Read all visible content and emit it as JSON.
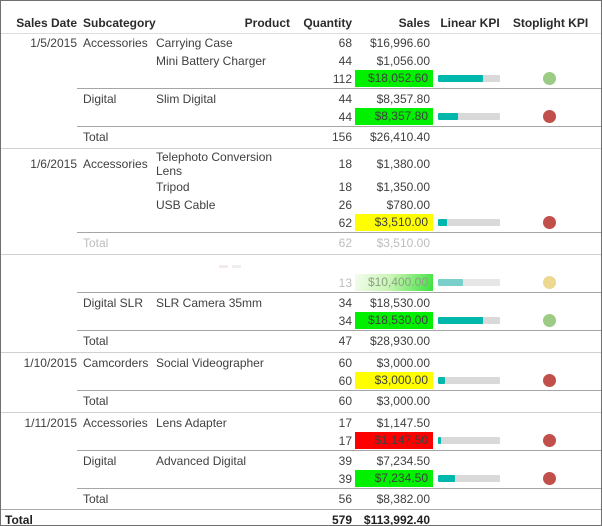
{
  "columns": {
    "sales_date": "Sales Date",
    "subcategory": "Subcategory",
    "product": "Product",
    "quantity": "Quantity",
    "sales": "Sales",
    "linear_kpi": "Linear KPI",
    "stoplight_kpi": "Stoplight KPI"
  },
  "colors": {
    "highlight_green": "#00f000",
    "highlight_yellow": "#ffff00",
    "highlight_red": "#ff0000",
    "kpi_bar_teal": "#00b7ab",
    "kpi_track_gray": "#d9d9d9",
    "stoplight_green": "#9bcb84",
    "stoplight_red": "#c1504b",
    "stoplight_yellow_faded": "#ecd88f",
    "text": "#3f3f3f",
    "faded_text": "#bdbdbd"
  },
  "rows": [
    {
      "type": "detail",
      "line": "",
      "date": "1/5/2015",
      "subcat": "Accessories",
      "product": "Carrying Case",
      "qty": "68",
      "sales": "$16,996.60",
      "hl": "",
      "bar": null,
      "light": "",
      "faded": false
    },
    {
      "type": "detail",
      "line": "",
      "date": "",
      "subcat": "",
      "product": "Mini Battery Charger",
      "qty": "44",
      "sales": "$1,056.00",
      "hl": "",
      "bar": null,
      "light": "",
      "faded": false
    },
    {
      "type": "sub",
      "line": "",
      "date": "",
      "subcat": "",
      "product": "",
      "qty": "112",
      "sales": "$18,052.60",
      "hl": "lime",
      "bar": 72,
      "light": "green",
      "faded": false
    },
    {
      "type": "detail",
      "line": "sub",
      "date": "",
      "subcat": "Digital",
      "product": "Slim Digital",
      "qty": "44",
      "sales": "$8,357.80",
      "hl": "",
      "bar": null,
      "light": "",
      "faded": false
    },
    {
      "type": "sub",
      "line": "",
      "date": "",
      "subcat": "",
      "product": "",
      "qty": "44",
      "sales": "$8,357.80",
      "hl": "lime",
      "bar": 33,
      "light": "red",
      "faded": false
    },
    {
      "type": "total",
      "line": "sub",
      "date": "",
      "subcat": "Total",
      "product": "",
      "qty": "156",
      "sales": "$26,410.40",
      "hl": "",
      "bar": null,
      "light": "",
      "faded": false
    },
    {
      "type": "detail",
      "line": "group",
      "date": "1/6/2015",
      "subcat": "Accessories",
      "product": "Telephoto Conversion Lens",
      "qty": "18",
      "sales": "$1,380.00",
      "hl": "",
      "bar": null,
      "light": "",
      "faded": false
    },
    {
      "type": "detail",
      "line": "",
      "date": "",
      "subcat": "",
      "product": "Tripod",
      "qty": "18",
      "sales": "$1,350.00",
      "hl": "",
      "bar": null,
      "light": "",
      "faded": false
    },
    {
      "type": "detail",
      "line": "",
      "date": "",
      "subcat": "",
      "product": "USB Cable",
      "qty": "26",
      "sales": "$780.00",
      "hl": "",
      "bar": null,
      "light": "",
      "faded": false
    },
    {
      "type": "sub",
      "line": "",
      "date": "",
      "subcat": "",
      "product": "",
      "qty": "62",
      "sales": "$3,510.00",
      "hl": "yellow",
      "bar": 14,
      "light": "red",
      "faded": false
    },
    {
      "type": "total",
      "line": "sub",
      "date": "",
      "subcat": "Total",
      "product": "",
      "qty": "62",
      "sales": "$3,510.00",
      "hl": "",
      "bar": null,
      "light": "",
      "faded": true
    },
    {
      "type": "ghost",
      "line": "group",
      "date": "",
      "subcat": "",
      "product": "",
      "qty": "",
      "sales": "",
      "hl": "",
      "bar": null,
      "light": "",
      "faded": true
    },
    {
      "type": "sub",
      "line": "",
      "date": "",
      "subcat": "",
      "product": "",
      "qty": "13",
      "sales": "$10,400.00",
      "hl": "ghost",
      "bar": 41,
      "light": "yellow-faded",
      "faded": true
    },
    {
      "type": "detail",
      "line": "sub",
      "date": "",
      "subcat": "Digital SLR",
      "product": "SLR Camera 35mm",
      "qty": "34",
      "sales": "$18,530.00",
      "hl": "",
      "bar": null,
      "light": "",
      "faded": false
    },
    {
      "type": "sub",
      "line": "",
      "date": "",
      "subcat": "",
      "product": "",
      "qty": "34",
      "sales": "$18,530.00",
      "hl": "lime",
      "bar": 73,
      "light": "green",
      "faded": false
    },
    {
      "type": "total",
      "line": "sub",
      "date": "",
      "subcat": "Total",
      "product": "",
      "qty": "47",
      "sales": "$28,930.00",
      "hl": "",
      "bar": null,
      "light": "",
      "faded": false
    },
    {
      "type": "detail",
      "line": "group",
      "date": "1/10/2015",
      "subcat": "Camcorders",
      "product": "Social Videographer",
      "qty": "60",
      "sales": "$3,000.00",
      "hl": "",
      "bar": null,
      "light": "",
      "faded": false
    },
    {
      "type": "sub",
      "line": "",
      "date": "",
      "subcat": "",
      "product": "",
      "qty": "60",
      "sales": "$3,000.00",
      "hl": "yellow",
      "bar": 12,
      "light": "red",
      "faded": false
    },
    {
      "type": "total",
      "line": "sub",
      "date": "",
      "subcat": "Total",
      "product": "",
      "qty": "60",
      "sales": "$3,000.00",
      "hl": "",
      "bar": null,
      "light": "",
      "faded": false
    },
    {
      "type": "detail",
      "line": "group",
      "date": "1/11/2015",
      "subcat": "Accessories",
      "product": "Lens Adapter",
      "qty": "17",
      "sales": "$1,147.50",
      "hl": "",
      "bar": null,
      "light": "",
      "faded": false
    },
    {
      "type": "sub",
      "line": "",
      "date": "",
      "subcat": "",
      "product": "",
      "qty": "17",
      "sales": "$1,147.50",
      "hl": "red",
      "bar": 5,
      "light": "red",
      "faded": false
    },
    {
      "type": "detail",
      "line": "sub",
      "date": "",
      "subcat": "Digital",
      "product": "Advanced Digital",
      "qty": "39",
      "sales": "$7,234.50",
      "hl": "",
      "bar": null,
      "light": "",
      "faded": false
    },
    {
      "type": "sub",
      "line": "",
      "date": "",
      "subcat": "",
      "product": "",
      "qty": "39",
      "sales": "$7,234.50",
      "hl": "lime",
      "bar": 28,
      "light": "red",
      "faded": false
    },
    {
      "type": "total",
      "line": "sub",
      "date": "",
      "subcat": "Total",
      "product": "",
      "qty": "56",
      "sales": "$8,382.00",
      "hl": "",
      "bar": null,
      "light": "",
      "faded": false
    }
  ],
  "grand_total": {
    "label": "Total",
    "qty": "579",
    "sales": "$113,992.40"
  }
}
